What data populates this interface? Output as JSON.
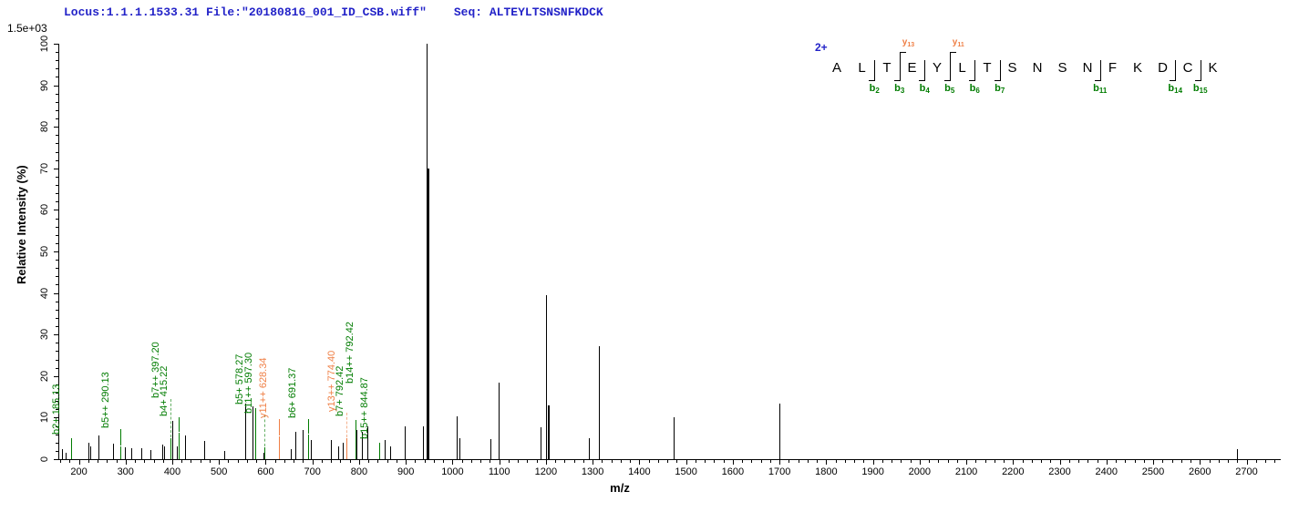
{
  "header": {
    "locus_file": "Locus:1.1.1.1533.31 File:\"20180816_001_ID_CSB.wiff\"",
    "seq": "Seq: ALTEYLTSNSNFKDCK",
    "base_intensity": "1.5e+03"
  },
  "chart_data": {
    "type": "ms2_fragment_spectrum",
    "axes": {
      "xlabel": "m/z",
      "ylabel": "Relative  Intensity (%)",
      "x_tick_min": 200,
      "x_tick_max": 2700,
      "x_major_step": 100,
      "x_minor_step": 20,
      "x_range": [
        158,
        2772
      ],
      "y_min": 0,
      "y_max": 100,
      "y_major_step": 10,
      "y_minor_step": 2
    },
    "colors": {
      "b_ion": "#007c00",
      "y_ion": "#ef7f45",
      "peak": "#000000",
      "header_text": "#2323c8",
      "charge": "#2323c8"
    },
    "peaks": [
      {
        "mz": 165,
        "pct": 2.5
      },
      {
        "mz": 172,
        "pct": 1.5
      },
      {
        "mz": 185.13,
        "pct": 5,
        "ion": "b",
        "labels": [
          {
            "text": "b2+ 185.13"
          }
        ]
      },
      {
        "mz": 222,
        "pct": 4
      },
      {
        "mz": 226,
        "pct": 3
      },
      {
        "mz": 242,
        "pct": 5.7
      },
      {
        "mz": 275,
        "pct": 3.8
      },
      {
        "mz": 290.13,
        "pct": 3,
        "ion": "b",
        "labels": [
          {
            "text": "b5++ 290.13",
            "dy": 16,
            "leader": "solid"
          }
        ]
      },
      {
        "mz": 299,
        "pct": 2.8
      },
      {
        "mz": 314,
        "pct": 2.6
      },
      {
        "mz": 335,
        "pct": 2.7
      },
      {
        "mz": 355,
        "pct": 2.2
      },
      {
        "mz": 379,
        "pct": 3.4
      },
      {
        "mz": 384,
        "pct": 3
      },
      {
        "mz": 397.2,
        "pct": 5,
        "ion": "b",
        "labels": [
          {
            "text": "b7++ 397.20",
            "dy": 40,
            "leader": "dashed"
          }
        ]
      },
      {
        "mz": 401,
        "pct": 9.3
      },
      {
        "mz": 410,
        "pct": 3.1
      },
      {
        "mz": 415.22,
        "pct": 6.4,
        "ion": "b",
        "labels": [
          {
            "text": "b4+ 415.22",
            "dy": 14,
            "leader": "solid"
          }
        ]
      },
      {
        "mz": 428,
        "pct": 5.6
      },
      {
        "mz": 470,
        "pct": 4.3
      },
      {
        "mz": 512,
        "pct": 2
      },
      {
        "mz": 558,
        "pct": 13.3
      },
      {
        "mz": 572,
        "pct": 12.8
      },
      {
        "mz": 578.27,
        "pct": 12.2,
        "ion": "b",
        "labels": [
          {
            "text": "b5+ 578.27"
          }
        ]
      },
      {
        "mz": 596,
        "pct": 1.5
      },
      {
        "mz": 597.3,
        "pct": 2.8,
        "ion": "b",
        "labels": [
          {
            "text": "b11++ 597.30",
            "dy": 33,
            "leader": "dashed"
          }
        ]
      },
      {
        "mz": 628.34,
        "pct": 5.5,
        "ion": "y",
        "labels": [
          {
            "text": "y11++ 628.34",
            "dy": 16,
            "leader": "solid"
          }
        ]
      },
      {
        "mz": 654,
        "pct": 2.5
      },
      {
        "mz": 665,
        "pct": 6.5
      },
      {
        "mz": 680,
        "pct": 7
      },
      {
        "mz": 691.37,
        "pct": 6,
        "ion": "b",
        "labels": [
          {
            "text": "b6+ 691.37",
            "dy": 14,
            "leader": "solid"
          }
        ]
      },
      {
        "mz": 697,
        "pct": 4.5
      },
      {
        "mz": 740,
        "pct": 4.5
      },
      {
        "mz": 756,
        "pct": 3
      },
      {
        "mz": 765,
        "pct": 4
      },
      {
        "mz": 774.4,
        "pct": 5,
        "ion": "y",
        "labels": [
          {
            "text": "y13++ 774.40",
            "dy": 25,
            "leader": "dashed"
          }
        ]
      },
      {
        "mz": 792.42,
        "pct": 9.5,
        "ion": "b",
        "labels": [
          {
            "text": "b7+ 792.42"
          },
          {
            "text": "b14++ 792.42",
            "dx": 11,
            "dy": 36
          }
        ]
      },
      {
        "mz": 796,
        "pct": 7
      },
      {
        "mz": 806,
        "pct": 6.5
      },
      {
        "mz": 818,
        "pct": 8
      },
      {
        "mz": 844.87,
        "pct": 4,
        "ion": "b",
        "labels": [
          {
            "text": "b15++ 844.87"
          }
        ]
      },
      {
        "mz": 856,
        "pct": 4.5
      },
      {
        "mz": 867,
        "pct": 3
      },
      {
        "mz": 899,
        "pct": 8
      },
      {
        "mz": 938,
        "pct": 8
      },
      {
        "mz": 945.5,
        "pct": 100
      },
      {
        "mz": 948.5,
        "pct": 70,
        "w": 2
      },
      {
        "mz": 1010,
        "pct": 10.4
      },
      {
        "mz": 1015,
        "pct": 5
      },
      {
        "mz": 1082,
        "pct": 4.8
      },
      {
        "mz": 1099,
        "pct": 18.4
      },
      {
        "mz": 1189,
        "pct": 7.7
      },
      {
        "mz": 1202,
        "pct": 39.5
      },
      {
        "mz": 1205.5,
        "pct": 13,
        "w": 2
      },
      {
        "mz": 1293,
        "pct": 5
      },
      {
        "mz": 1314,
        "pct": 27.3
      },
      {
        "mz": 1474,
        "pct": 10
      },
      {
        "mz": 1700,
        "pct": 13.3
      },
      {
        "mz": 2680,
        "pct": 2.5
      }
    ],
    "sequence_annotation": {
      "charge_label": "2+",
      "residues": [
        "A",
        "L",
        "T",
        "E",
        "Y",
        "L",
        "T",
        "S",
        "N",
        "S",
        "N",
        "F",
        "K",
        "D",
        "C",
        "K"
      ],
      "b_ions": [
        {
          "label": "b2",
          "after": 1
        },
        {
          "label": "b3",
          "after": 2
        },
        {
          "label": "b4",
          "after": 3
        },
        {
          "label": "b5",
          "after": 4
        },
        {
          "label": "b6",
          "after": 5
        },
        {
          "label": "b7",
          "after": 6
        },
        {
          "label": "b11",
          "after": 10
        },
        {
          "label": "b14",
          "after": 13
        },
        {
          "label": "b15",
          "after": 14
        }
      ],
      "y_ions": [
        {
          "label": "y13",
          "after": 2
        },
        {
          "label": "y11",
          "after": 4
        }
      ]
    }
  }
}
